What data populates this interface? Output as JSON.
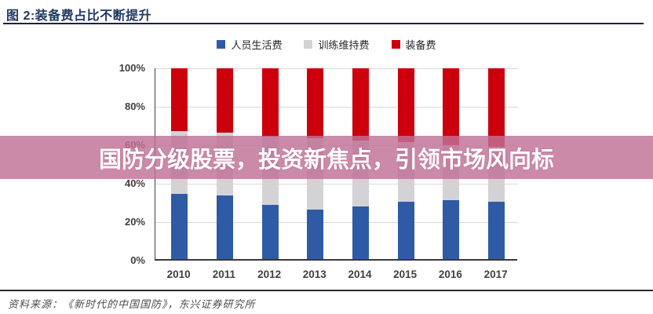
{
  "figure": {
    "title": "图 2:装备费占比不断提升",
    "source": "资料来源：《新时代的中国国防》，东兴证券研究所"
  },
  "overlay": {
    "text": "国防分级股票，投资新焦点，引领市场风向标",
    "bg_color": "rgba(193,112,150,0.82)",
    "text_color": "#ffffff"
  },
  "chart_data": {
    "type": "bar",
    "stacked": true,
    "title": "图 2:装备费占比不断提升",
    "categories": [
      "2010",
      "2011",
      "2012",
      "2013",
      "2014",
      "2015",
      "2016",
      "2017"
    ],
    "series": [
      {
        "name": "人员生活费",
        "color": "#2f5ba6",
        "values": [
          34.5,
          34.0,
          29.0,
          26.5,
          28.0,
          30.5,
          31.5,
          30.5
        ]
      },
      {
        "name": "训练维持费",
        "color": "#d3d3d5",
        "values": [
          33.0,
          32.5,
          35.5,
          37.0,
          34.5,
          31.0,
          28.5,
          28.5
        ]
      },
      {
        "name": "装备费",
        "color": "#cc000d",
        "values": [
          32.5,
          33.5,
          35.5,
          36.5,
          37.5,
          38.5,
          40.0,
          41.0
        ]
      }
    ],
    "xlabel": "",
    "ylabel": "",
    "ylim": [
      0,
      100
    ],
    "yticks": [
      "0%",
      "20%",
      "40%",
      "60%",
      "80%",
      "100%"
    ],
    "grid": true,
    "legend_position": "top",
    "axis_color": "#404040",
    "gridline_color": "#d9d9d9"
  }
}
